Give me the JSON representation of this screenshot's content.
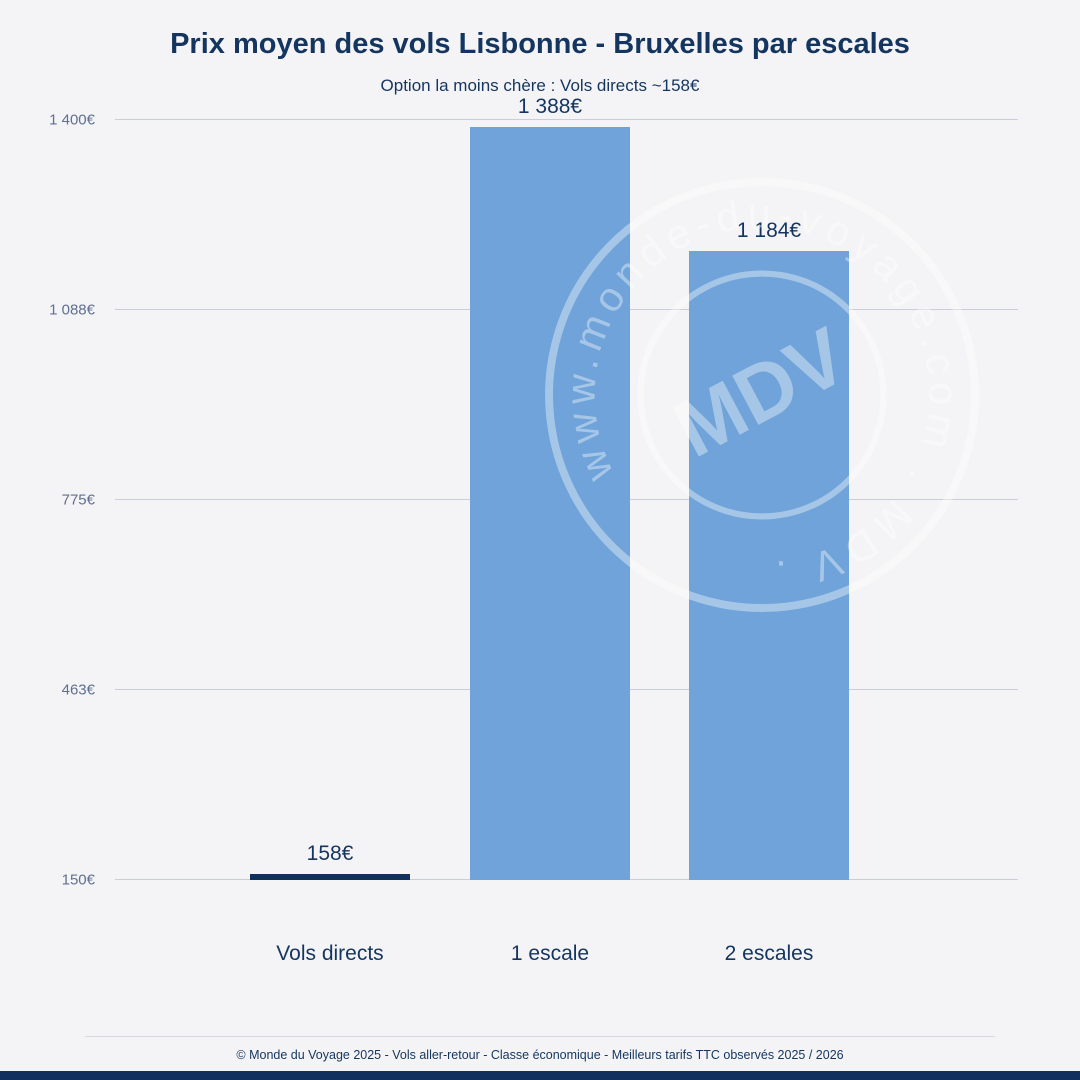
{
  "page": {
    "title": "Prix moyen des vols Lisbonne - Bruxelles par escales",
    "subtitle": "Option la moins chère : Vols directs ~158€",
    "footer": "© Monde du Voyage 2025 - Vols aller-retour - Classe économique - Meilleurs tarifs TTC observés 2025 / 2026"
  },
  "watermark": {
    "ring_text": "www.monde-du-voyage.com . MDV .",
    "center_text": "MDV"
  },
  "colors": {
    "accent_navy": "#14355f",
    "bar_blue": "#6fa3d9",
    "bar_navy": "#12305e",
    "grid": "#c9ced9",
    "background": "#f4f4f6",
    "tick": "#5f7090",
    "footer_line": "#d8d8dd"
  },
  "chart_data": {
    "type": "bar",
    "title": "Prix moyen des vols Lisbonne - Bruxelles par escales",
    "subtitle": "Option la moins chère : Vols directs ~158€",
    "categories": [
      "Vols directs",
      "1 escale",
      "2 escales"
    ],
    "values": [
      158,
      1388,
      1184
    ],
    "value_labels": [
      "158€",
      "1 388€",
      "1 184€"
    ],
    "bar_colors": [
      "#12305e",
      "#6fa3d9",
      "#6fa3d9"
    ],
    "xlabel": "",
    "ylabel": "",
    "ylim": [
      150,
      1400
    ],
    "yticks": [
      150,
      463,
      775,
      1088,
      1400
    ],
    "ytick_labels": [
      "150€",
      "463€",
      "775€",
      "1 088€",
      "1 400€"
    ],
    "grid": true,
    "legend": "none",
    "currency": "EUR"
  }
}
